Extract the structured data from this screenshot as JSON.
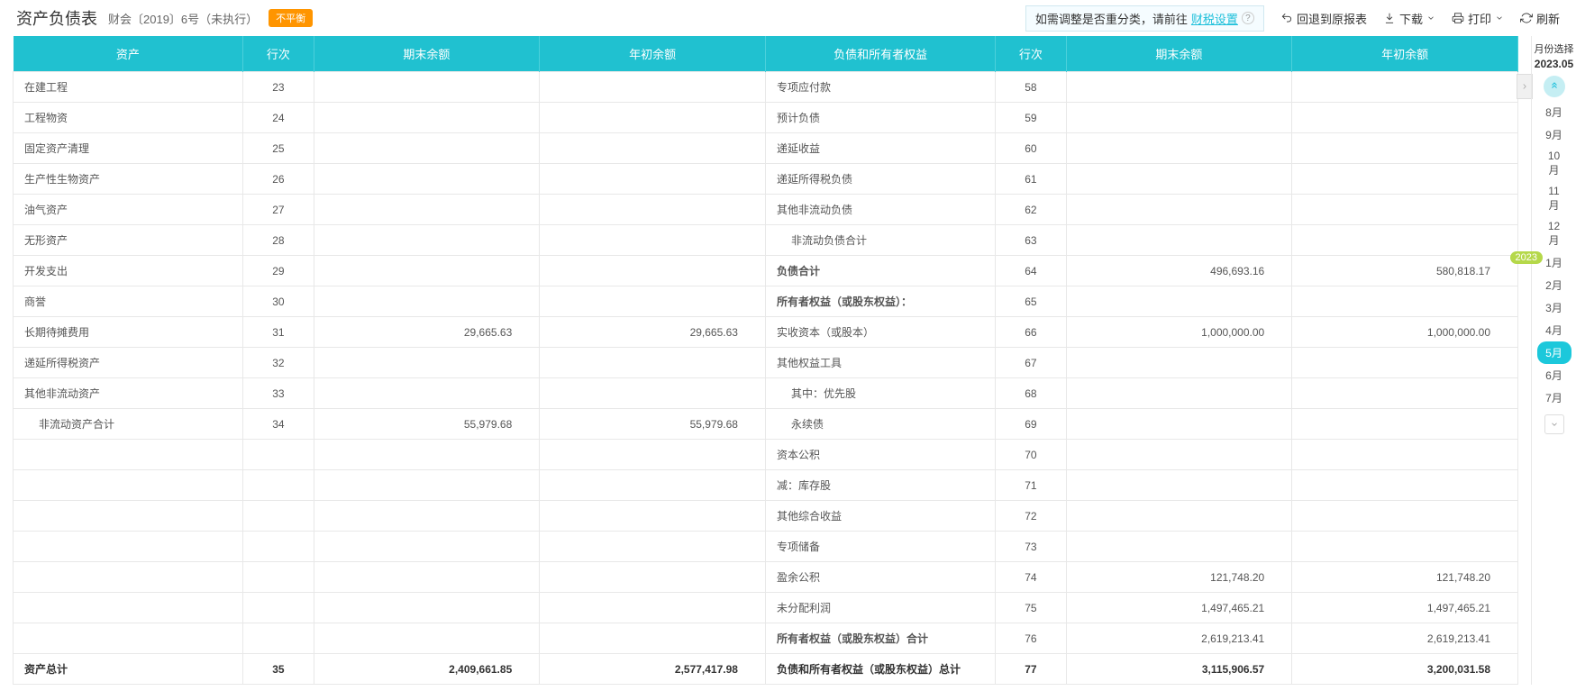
{
  "header": {
    "title": "资产负债表",
    "subtitle": "财会〔2019〕6号（未执行）",
    "badge": "不平衡",
    "notice_prefix": "如需调整是否重分类，请前往",
    "notice_link": "财税设置",
    "actions": {
      "back": "回退到原报表",
      "download": "下载",
      "print": "打印",
      "refresh": "刷新"
    }
  },
  "table": {
    "headers": {
      "asset": "资产",
      "line": "行次",
      "end_balance": "期末余额",
      "begin_balance": "年初余额",
      "liability": "负债和所有者权益"
    },
    "left_rows": [
      {
        "name": "在建工程",
        "line": "23",
        "end": "",
        "begin": "",
        "indent": 0
      },
      {
        "name": "工程物资",
        "line": "24",
        "end": "",
        "begin": "",
        "indent": 0
      },
      {
        "name": "固定资产清理",
        "line": "25",
        "end": "",
        "begin": "",
        "indent": 0
      },
      {
        "name": "生产性生物资产",
        "line": "26",
        "end": "",
        "begin": "",
        "indent": 0
      },
      {
        "name": "油气资产",
        "line": "27",
        "end": "",
        "begin": "",
        "indent": 0
      },
      {
        "name": "无形资产",
        "line": "28",
        "end": "",
        "begin": "",
        "indent": 0
      },
      {
        "name": "开发支出",
        "line": "29",
        "end": "",
        "begin": "",
        "indent": 0
      },
      {
        "name": "商誉",
        "line": "30",
        "end": "",
        "begin": "",
        "indent": 0
      },
      {
        "name": "长期待摊费用",
        "line": "31",
        "end": "29,665.63",
        "begin": "29,665.63",
        "indent": 0
      },
      {
        "name": "递延所得税资产",
        "line": "32",
        "end": "",
        "begin": "",
        "indent": 0
      },
      {
        "name": "其他非流动资产",
        "line": "33",
        "end": "",
        "begin": "",
        "indent": 0
      },
      {
        "name": "非流动资产合计",
        "line": "34",
        "end": "55,979.68",
        "begin": "55,979.68",
        "indent": 1
      },
      {
        "name": "",
        "line": "",
        "end": "",
        "begin": "",
        "indent": 0
      },
      {
        "name": "",
        "line": "",
        "end": "",
        "begin": "",
        "indent": 0
      },
      {
        "name": "",
        "line": "",
        "end": "",
        "begin": "",
        "indent": 0
      },
      {
        "name": "",
        "line": "",
        "end": "",
        "begin": "",
        "indent": 0
      },
      {
        "name": "",
        "line": "",
        "end": "",
        "begin": "",
        "indent": 0
      },
      {
        "name": "",
        "line": "",
        "end": "",
        "begin": "",
        "indent": 0
      },
      {
        "name": "",
        "line": "",
        "end": "",
        "begin": "",
        "indent": 0
      }
    ],
    "right_rows": [
      {
        "name": "专项应付款",
        "line": "58",
        "end": "",
        "begin": "",
        "indent": 0
      },
      {
        "name": "预计负债",
        "line": "59",
        "end": "",
        "begin": "",
        "indent": 0
      },
      {
        "name": "递延收益",
        "line": "60",
        "end": "",
        "begin": "",
        "indent": 0
      },
      {
        "name": "递延所得税负债",
        "line": "61",
        "end": "",
        "begin": "",
        "indent": 0
      },
      {
        "name": "其他非流动负债",
        "line": "62",
        "end": "",
        "begin": "",
        "indent": 0
      },
      {
        "name": "非流动负债合计",
        "line": "63",
        "end": "",
        "begin": "",
        "indent": 1
      },
      {
        "name": "负债合计",
        "line": "64",
        "end": "496,693.16",
        "begin": "580,818.17",
        "indent": 0,
        "bold": true
      },
      {
        "name": "所有者权益（或股东权益）：",
        "line": "65",
        "end": "",
        "begin": "",
        "indent": 0,
        "bold": true
      },
      {
        "name": "实收资本（或股本）",
        "line": "66",
        "end": "1,000,000.00",
        "begin": "1,000,000.00",
        "indent": 0
      },
      {
        "name": "其他权益工具",
        "line": "67",
        "end": "",
        "begin": "",
        "indent": 0
      },
      {
        "name": "其中：优先股",
        "line": "68",
        "end": "",
        "begin": "",
        "indent": 1
      },
      {
        "name": "永续债",
        "line": "69",
        "end": "",
        "begin": "",
        "indent": 1
      },
      {
        "name": "资本公积",
        "line": "70",
        "end": "",
        "begin": "",
        "indent": 0
      },
      {
        "name": "减：库存股",
        "line": "71",
        "end": "",
        "begin": "",
        "indent": 0
      },
      {
        "name": "其他综合收益",
        "line": "72",
        "end": "",
        "begin": "",
        "indent": 0
      },
      {
        "name": "专项储备",
        "line": "73",
        "end": "",
        "begin": "",
        "indent": 0
      },
      {
        "name": "盈余公积",
        "line": "74",
        "end": "121,748.20",
        "begin": "121,748.20",
        "indent": 0
      },
      {
        "name": "未分配利润",
        "line": "75",
        "end": "1,497,465.21",
        "begin": "1,497,465.21",
        "indent": 0
      },
      {
        "name": "所有者权益（或股东权益）合计",
        "line": "76",
        "end": "2,619,213.41",
        "begin": "2,619,213.41",
        "indent": 0,
        "bold": true
      }
    ],
    "total_left": {
      "name": "资产总计",
      "line": "35",
      "end": "2,409,661.85",
      "begin": "2,577,417.98"
    },
    "total_right": {
      "name": "负债和所有者权益（或股东权益）总计",
      "line": "77",
      "end": "3,115,906.57",
      "begin": "3,200,031.58"
    }
  },
  "sidebar": {
    "title": "月份选择",
    "current": "2023.05",
    "year_tag": "2023",
    "months": [
      "8月",
      "9月",
      "10月",
      "11月",
      "12月",
      "1月",
      "2月",
      "3月",
      "4月",
      "5月",
      "6月",
      "7月"
    ],
    "active_index": 9,
    "year_tag_index": 5
  }
}
